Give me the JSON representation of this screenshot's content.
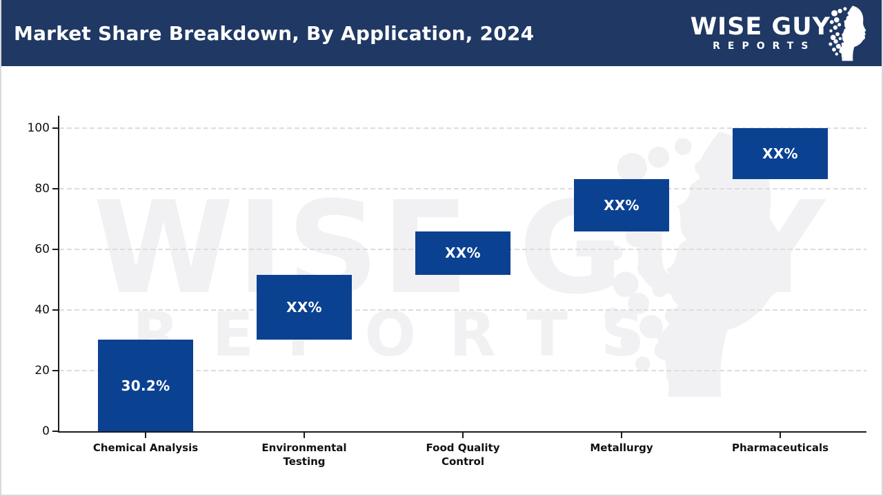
{
  "header": {
    "title": "Market Share Breakdown, By Application, 2024",
    "bg_color": "#1f3864",
    "logo": {
      "line1": "WISE GUY",
      "line2": "REPORTS"
    }
  },
  "watermark": {
    "line1": "WISE GUY",
    "line2": "REPORTS"
  },
  "chart_data": {
    "type": "bar",
    "subtype": "waterfall",
    "title": "Market Share Breakdown, By Application, 2024",
    "categories": [
      "Chemical Analysis",
      "Environmental\nTesting",
      "Food Quality\nControl",
      "Metallurgy",
      "Pharmaceuticals"
    ],
    "segments": [
      {
        "category": "Chemical Analysis",
        "start": 0,
        "end": 30.2,
        "label": "30.2%"
      },
      {
        "category": "Environmental Testing",
        "start": 30.2,
        "end": 51.6,
        "label": "XX%"
      },
      {
        "category": "Food Quality Control",
        "start": 51.6,
        "end": 66.0,
        "label": "XX%"
      },
      {
        "category": "Metallurgy",
        "start": 66.0,
        "end": 83.2,
        "label": "XX%"
      },
      {
        "category": "Pharmaceuticals",
        "start": 83.2,
        "end": 100,
        "label": "XX%"
      }
    ],
    "y_ticks": [
      0,
      20,
      40,
      60,
      80,
      100
    ],
    "ylim": [
      0,
      104
    ],
    "xlabel": "",
    "ylabel": "",
    "grid": "horizontal-dashed",
    "legend": "none",
    "bar_color": "#0b4191",
    "bar_label_color": "#ffffff",
    "axis_color": "#1a1a1a",
    "grid_color": "#dcdcdc"
  }
}
